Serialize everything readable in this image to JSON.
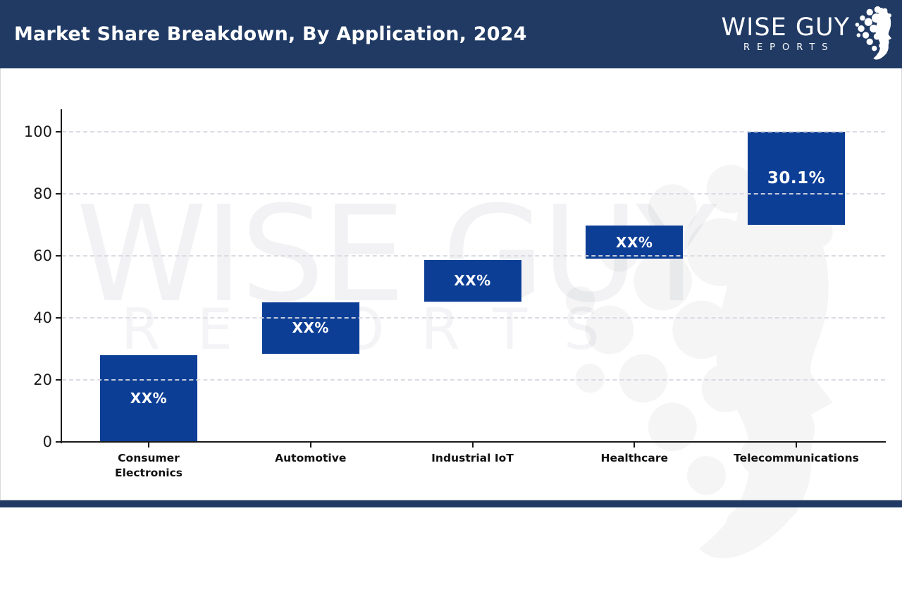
{
  "header": {
    "title": "Market Share Breakdown, By Application, 2024",
    "bg_color": "#203a64",
    "logo": {
      "line1": "WISE GUY",
      "line2": "REPORTS"
    }
  },
  "watermark": {
    "line1": "WISE GUY",
    "line2": "REPORTS"
  },
  "footer": {
    "bg_color": "#203a64"
  },
  "chart_data": {
    "type": "bar",
    "subtype": "waterfall-floating-bars",
    "title": "Market Share Breakdown, By Application, 2024",
    "xlabel": "",
    "ylabel": "",
    "ylim": [
      0,
      107
    ],
    "y_ticks": [
      0,
      20,
      40,
      60,
      80,
      100
    ],
    "grid": "horizontal-dashed",
    "legend": "none",
    "bar_color": "#0c3e96",
    "categories": [
      "Consumer\nElectronics",
      "Automotive",
      "Industrial IoT",
      "Healthcare",
      "Telecommunications"
    ],
    "segments": [
      {
        "category": "Consumer Electronics",
        "from": 0,
        "to": 28,
        "height": 28,
        "label": "XX%"
      },
      {
        "category": "Automotive",
        "from": 28.5,
        "to": 45,
        "height": 16.5,
        "label": "XX%"
      },
      {
        "category": "Industrial IoT",
        "from": 45.3,
        "to": 58.7,
        "height": 13.4,
        "label": "XX%"
      },
      {
        "category": "Healthcare",
        "from": 59,
        "to": 69.8,
        "height": 10.8,
        "label": "XX%"
      },
      {
        "category": "Telecommunications",
        "from": 69.9,
        "to": 100,
        "height": 30.1,
        "label": "30.1%"
      }
    ]
  }
}
